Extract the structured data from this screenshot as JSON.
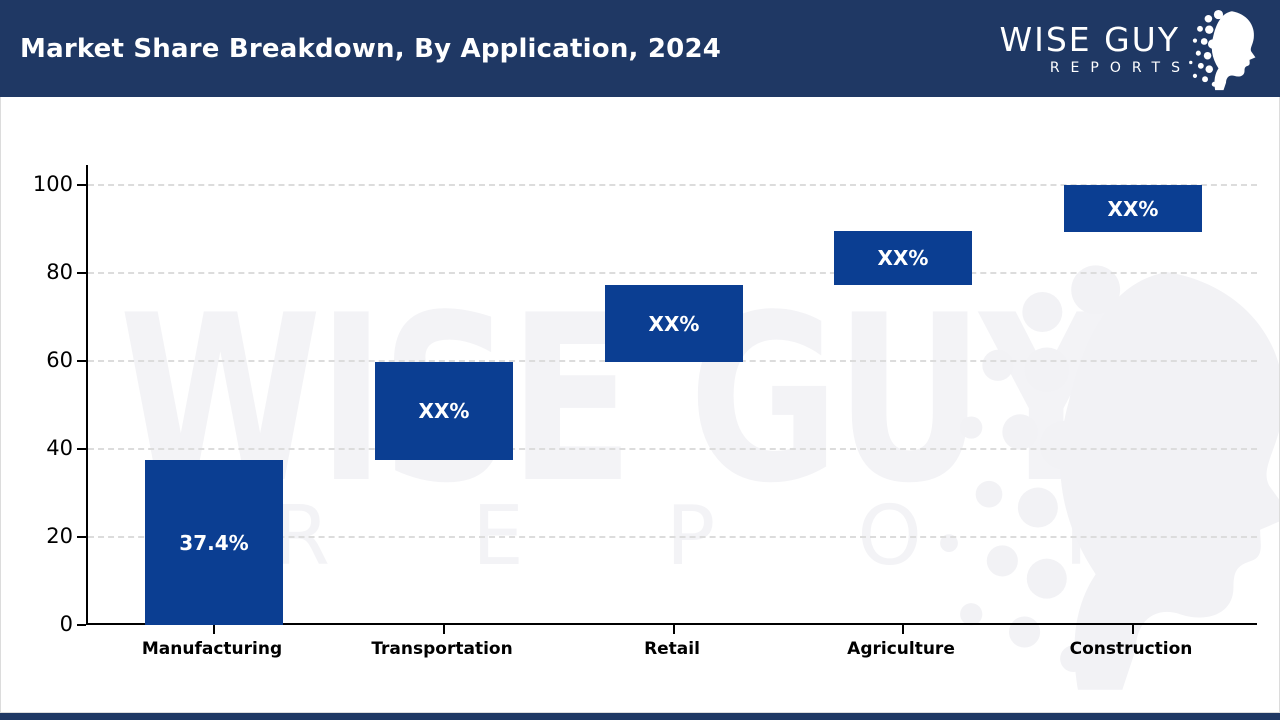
{
  "header": {
    "title": "Market Share Breakdown, By Application, 2024",
    "bg_color": "#1F3864",
    "logo": {
      "line1": "WISE GUY",
      "line2": "REPORTS"
    }
  },
  "watermark": {
    "line1": "WISE GUY",
    "line2": "REPORTS",
    "color": "#f3f3f6"
  },
  "chart_data": {
    "type": "bar",
    "subtype": "waterfall",
    "title": "Market Share Breakdown, By Application, 2024",
    "xlabel": "",
    "ylabel": "",
    "categories": [
      "Manufacturing",
      "Transportation",
      "Retail",
      "Agriculture",
      "Construction"
    ],
    "segments": [
      {
        "category": "Manufacturing",
        "start": 0,
        "end": 37.4,
        "label": "37.4%"
      },
      {
        "category": "Transportation",
        "start": 37.4,
        "end": 59.7,
        "label": "XX%"
      },
      {
        "category": "Retail",
        "start": 59.7,
        "end": 77.2,
        "label": "XX%"
      },
      {
        "category": "Agriculture",
        "start": 77.2,
        "end": 89.4,
        "label": "XX%"
      },
      {
        "category": "Construction",
        "start": 89.4,
        "end": 100,
        "label": "XX%"
      }
    ],
    "yticks": [
      0,
      20,
      40,
      60,
      80,
      100
    ],
    "ylim": [
      0,
      104.5
    ],
    "grid": true,
    "grid_style": "dashed",
    "legend": "none",
    "bar_color": "#0B3E92",
    "bar_label_color": "#ffffff",
    "axis_color": "#000000",
    "grid_color": "#dcdcdc"
  }
}
